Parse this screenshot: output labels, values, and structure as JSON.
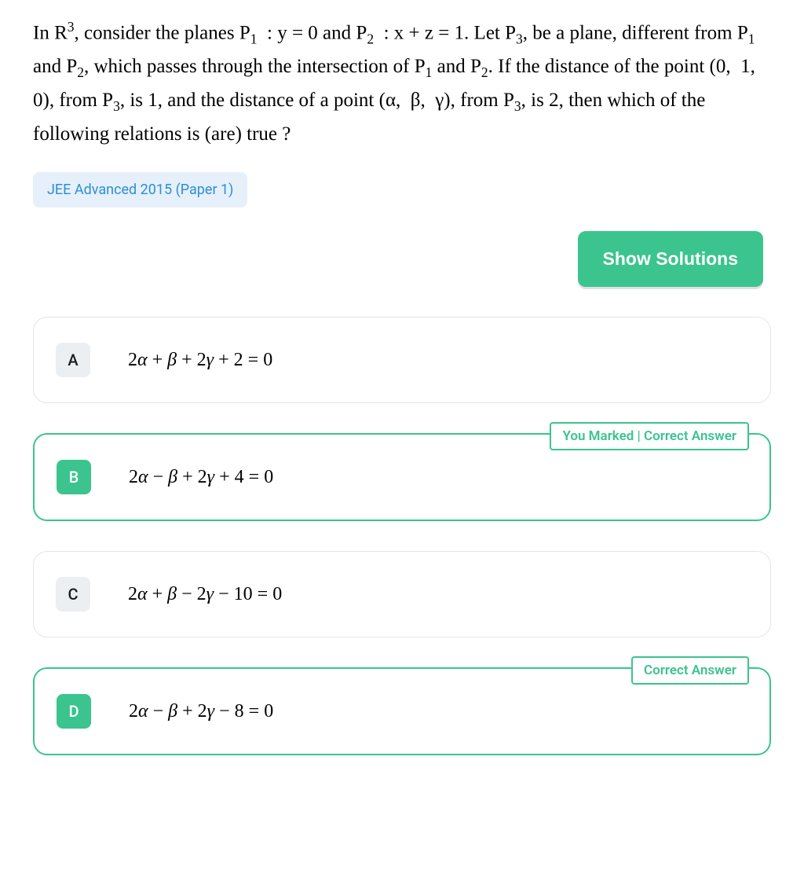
{
  "question": {
    "html": "In R<span class='sup'>3</span>, consider the planes P<span class='sub'>1</span>&nbsp; : y = 0 and P<span class='sub'>2</span>&nbsp; : x + z = 1. Let P<span class='sub'>3</span>, be a plane, different from P<span class='sub'>1</span> and P<span class='sub'>2</span>, which passes through the intersection of P<span class='sub'>1</span> and P<span class='sub'>2</span>. If the distance of the point (0,&nbsp; 1,&nbsp; 0), from P<span class='sub'>3</span>, is 1, and the distance of a point (α,&nbsp; β,&nbsp; γ), from P<span class='sub'>3</span>, is 2, then which of the following relations is (are) true ?"
  },
  "tag": "JEE Advanced 2015 (Paper 1)",
  "solutions_button": "Show Solutions",
  "status_labels": {
    "marked_correct": "You Marked | Correct Answer",
    "correct": "Correct Answer"
  },
  "options": [
    {
      "letter": "A",
      "formula_html": "<span class='upright'>2</span>α <span class='upright'>+</span> β <span class='upright'>+ 2</span>γ <span class='upright'>+ 2 = 0</span>",
      "state": "neutral"
    },
    {
      "letter": "B",
      "formula_html": "<span class='upright'>2</span>α <span class='upright'>−</span> β <span class='upright'>+ 2</span>γ <span class='upright'>+ 4 = 0</span>",
      "state": "marked_correct"
    },
    {
      "letter": "C",
      "formula_html": "<span class='upright'>2</span>α <span class='upright'>+</span> β <span class='upright'>− 2</span>γ <span class='upright'>− 10 = 0</span>",
      "state": "neutral"
    },
    {
      "letter": "D",
      "formula_html": "<span class='upright'>2</span>α <span class='upright'>−</span> β <span class='upright'>+ 2</span>γ <span class='upright'>− 8 = 0</span>",
      "state": "correct"
    }
  ],
  "colors": {
    "accent_green": "#3bc48e",
    "tag_bg": "#e6f0fa",
    "tag_text": "#2b8fd6",
    "neutral_letter_bg": "#eceff2",
    "border": "#e1e5ea"
  }
}
